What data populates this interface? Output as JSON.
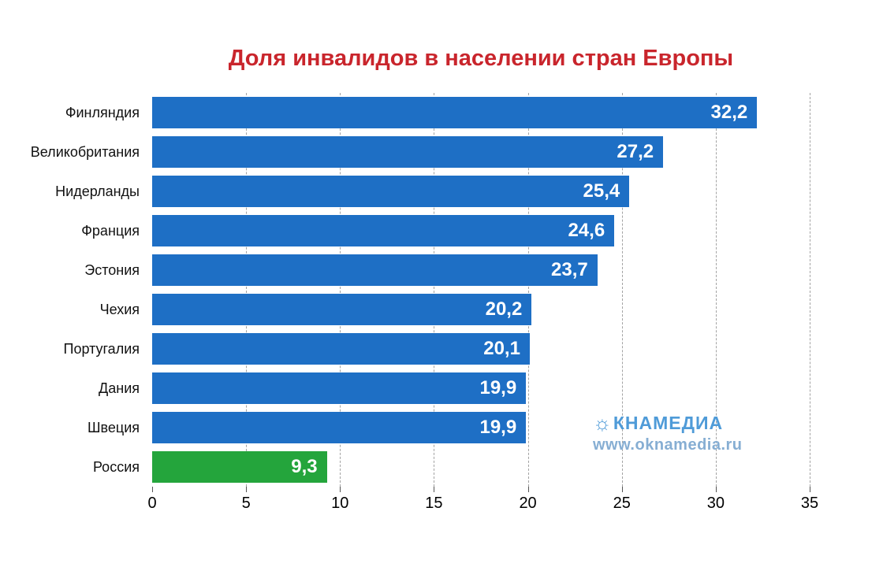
{
  "title": "Доля инвалидов в населении стран Европы",
  "watermark": {
    "sun_icon": "☼",
    "brand_text": "КНАМЕДИА",
    "url": "www.oknamedia.ru"
  },
  "chart_data": {
    "type": "bar",
    "orientation": "horizontal",
    "title": "Доля инвалидов в населении стран Европы",
    "categories": [
      "Финляндия",
      "Великобритания",
      "Нидерланды",
      "Франция",
      "Эстония",
      "Чехия",
      "Португалия",
      "Дания",
      "Швеция",
      "Россия"
    ],
    "values": [
      32.2,
      27.2,
      25.4,
      24.6,
      23.7,
      20.2,
      20.1,
      19.9,
      19.9,
      9.3
    ],
    "value_labels": [
      "32,2",
      "27,2",
      "25,4",
      "24,6",
      "23,7",
      "20,2",
      "20,1",
      "19,9",
      "19,9",
      "9,3"
    ],
    "xlim": [
      0,
      35
    ],
    "x_ticks": [
      0,
      5,
      10,
      15,
      20,
      25,
      30,
      35
    ],
    "grid": "dashed-vertical",
    "legend": "none",
    "colors": {
      "bar_default": "#1e6fc5",
      "bar_highlight": "#24a53c",
      "highlight_category": "Россия",
      "title": "#c9252c",
      "value_label": "#ffffff",
      "gridline": "#a3a3a3"
    }
  }
}
